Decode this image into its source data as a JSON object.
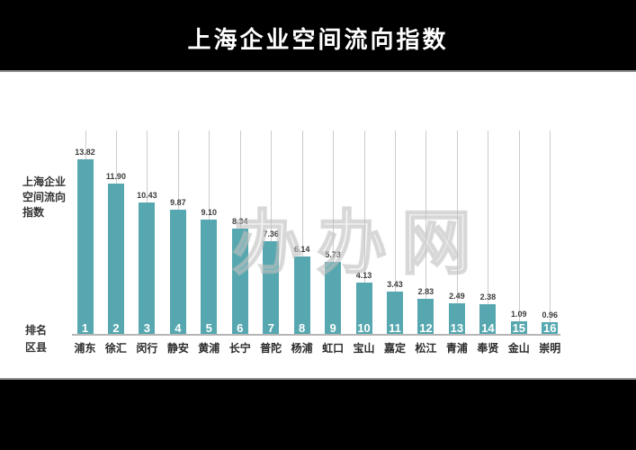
{
  "header": {
    "title": "上海企业空间流向指数"
  },
  "watermark": {
    "text": "办办网"
  },
  "axis": {
    "ylabel_lines": [
      "上海企业",
      "空间流向",
      "指数"
    ],
    "row_label_rank": "排名",
    "row_label_district": "区县"
  },
  "colors": {
    "bar": "#56a7af",
    "band_background": "#000000",
    "title_text": "#ffffff",
    "gridline": "#cccccc",
    "axis_line": "#b5b5b5",
    "value_label": "#3d3d3d",
    "rank_label": "#ffffff",
    "category_label": "#2b2b2b",
    "watermark": "#bababa"
  },
  "chart_data": {
    "type": "bar",
    "title": "上海企业空间流向指数",
    "ylabel": "上海企业空间流向指数",
    "xlabel": "区县",
    "categories": [
      "浦东",
      "徐汇",
      "闵行",
      "静安",
      "黄浦",
      "长宁",
      "普陀",
      "杨浦",
      "虹口",
      "宝山",
      "嘉定",
      "松江",
      "青浦",
      "奉贤",
      "金山",
      "崇明"
    ],
    "ranks": [
      1,
      2,
      3,
      4,
      5,
      6,
      7,
      8,
      9,
      10,
      11,
      12,
      13,
      14,
      15,
      16
    ],
    "values": [
      13.82,
      11.9,
      10.43,
      9.87,
      9.1,
      8.34,
      7.36,
      6.14,
      5.73,
      4.13,
      3.43,
      2.83,
      2.49,
      2.38,
      1.09,
      0.96
    ],
    "value_labels": [
      "13.82",
      "11.90",
      "10.43",
      "9.87",
      "9.10",
      "8.34",
      "7.36",
      "6.14",
      "5.73",
      "4.13",
      "3.43",
      "2.83",
      "2.49",
      "2.38",
      "1.09",
      "0.96"
    ],
    "ylim": [
      0,
      14
    ],
    "grid": "vertical-per-bar",
    "legend": "none"
  }
}
